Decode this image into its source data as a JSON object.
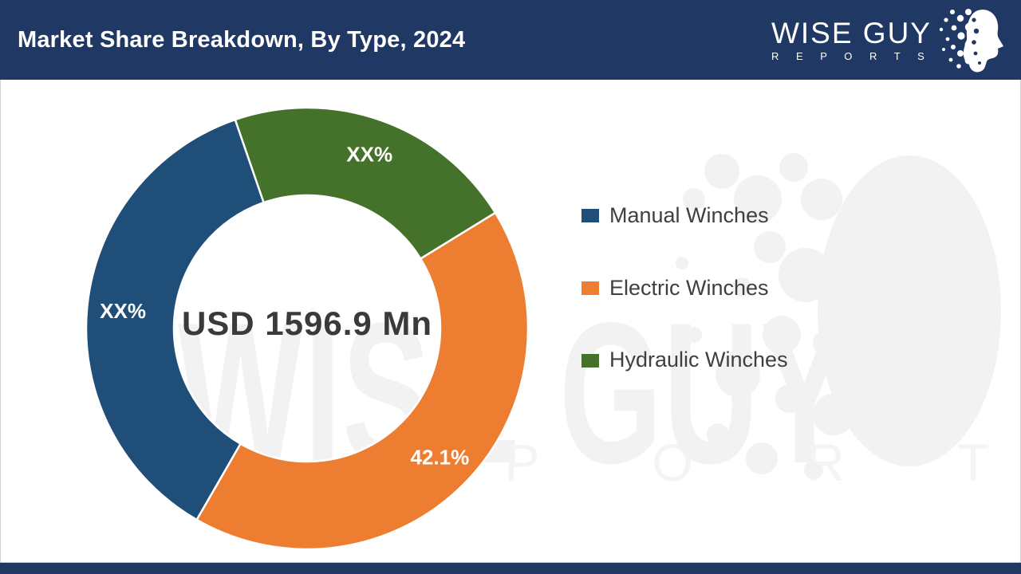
{
  "header": {
    "title": "Market Share Breakdown, By Type, 2024",
    "logo": {
      "line1": "WISE GUY",
      "line2": "R E P O R T S"
    }
  },
  "watermark": {
    "line1": "WISE GUY",
    "line2": "R E P O R T S"
  },
  "chart_data": {
    "type": "pie",
    "donut": true,
    "title": "Market Share Breakdown, By Type, 2024",
    "center_label": "USD 1596.9 Mn",
    "start_angle_deg": 109,
    "direction": "counterclockwise",
    "legend_position": "right",
    "slices": [
      {
        "name": "Manual Winches",
        "display_label": "XX%",
        "value_pct": 36.4,
        "color": "#1f4e78"
      },
      {
        "name": "Electric Winches",
        "display_label": "42.1%",
        "value_pct": 42.1,
        "color": "#ed7d31"
      },
      {
        "name": "Hydraulic Winches",
        "display_label": "XX%",
        "value_pct": 21.5,
        "color": "#45722a"
      }
    ]
  },
  "colors": {
    "header_bg": "#1f3864",
    "footer_bg": "#1f3864",
    "center_text": "#3a3a3a",
    "legend_text": "#3f3f3f",
    "watermark": "#f2f2f2"
  }
}
